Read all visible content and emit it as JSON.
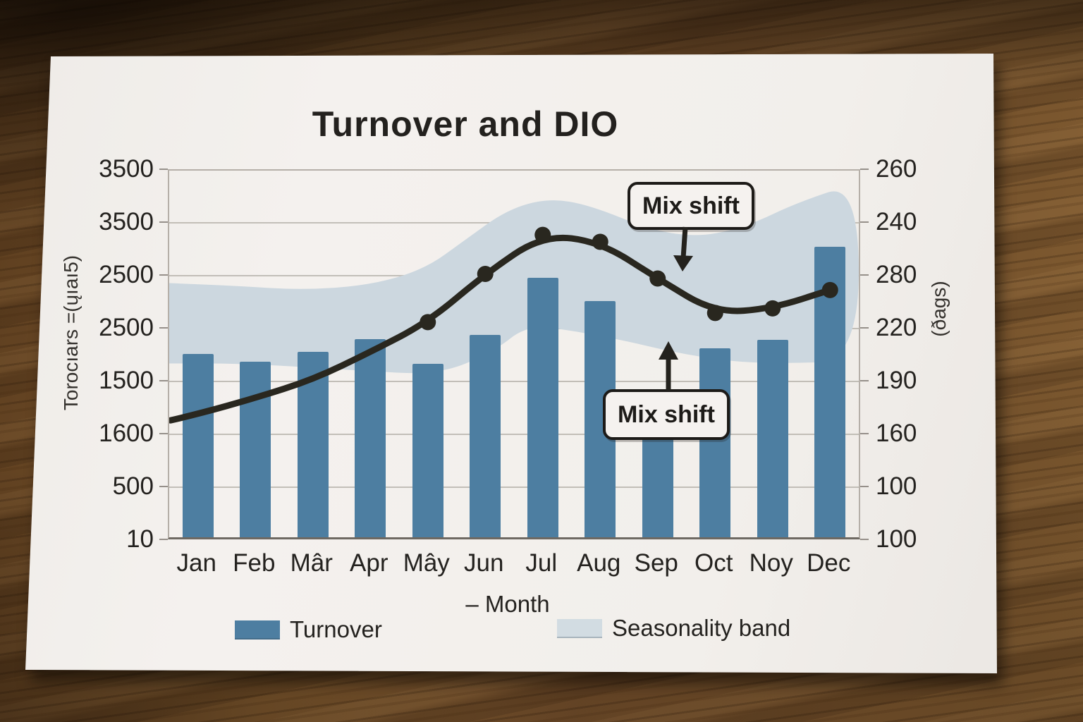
{
  "chart_data": {
    "type": "bar+line",
    "title": "Turnover and DIO",
    "xlabel": "– Month",
    "categories": [
      "Jan",
      "Feb",
      "Mar",
      "Apr",
      "May",
      "Jun",
      "Jul",
      "Aug",
      "Sep",
      "Oct",
      "Nov",
      "Dec"
    ],
    "x_tick_labels_as_printed": [
      "Jan",
      "Feb",
      "Mâr",
      "Apr",
      "Mây",
      "Jun",
      "Jul",
      "Aug",
      "Sep",
      "Oct",
      "Noy",
      "Dec"
    ],
    "left_axis": {
      "label": "Torocıars =(ųıaı5)",
      "tick_labels": [
        "3500",
        "3500",
        "2500",
        "2500",
        "1500",
        "1600",
        "500",
        "10"
      ],
      "ylim": [
        0,
        3500
      ]
    },
    "right_axis": {
      "label": "(ðags)",
      "tick_labels": [
        "260",
        "240",
        "280",
        "220",
        "190",
        "160",
        "100",
        "100"
      ],
      "ylim": [
        100,
        260
      ]
    },
    "grid": true,
    "legend_position": "bottom",
    "series": [
      {
        "name": "Turnover",
        "type": "bar",
        "axis": "left",
        "color": "#4d7ea1",
        "values": [
          1750,
          1670,
          1770,
          1890,
          1650,
          1930,
          2470,
          2250,
          1370,
          1800,
          1880,
          2770
        ]
      },
      {
        "name": "DIO",
        "type": "line",
        "axis": "right",
        "color": "#29271f",
        "marker_start_index": 4,
        "values": [
          154,
          161,
          169,
          181,
          194,
          215,
          232,
          229,
          213,
          198,
          200,
          208
        ]
      },
      {
        "name": "Seasonality band",
        "type": "band",
        "axis": "right",
        "color": "#ccd7df",
        "top": [
          [
            0,
            211
          ],
          [
            0.09,
            210
          ],
          [
            0.19,
            208
          ],
          [
            0.29,
            210
          ],
          [
            0.37,
            217
          ],
          [
            0.43,
            230
          ],
          [
            0.49,
            243
          ],
          [
            0.55,
            248
          ],
          [
            0.61,
            245
          ],
          [
            0.7,
            234
          ],
          [
            0.77,
            231
          ],
          [
            0.84,
            236
          ],
          [
            0.91,
            246
          ],
          [
            1,
            255
          ]
        ],
        "bottom": [
          [
            0,
            176
          ],
          [
            0.11,
            176
          ],
          [
            0.27,
            173
          ],
          [
            0.39,
            171
          ],
          [
            0.47,
            181
          ],
          [
            0.52,
            193
          ],
          [
            0.59,
            190
          ],
          [
            0.66,
            186
          ],
          [
            0.73,
            181
          ],
          [
            0.81,
            177
          ],
          [
            0.88,
            176
          ],
          [
            1,
            177
          ]
        ]
      }
    ],
    "legend": {
      "items": [
        {
          "label": "Turnover",
          "color": "#4d7ea1"
        },
        {
          "label": "Seasonality band",
          "color": "#d2dce2"
        }
      ]
    },
    "annotations": [
      {
        "text": "Mix shift",
        "arrow_direction": "down"
      },
      {
        "text": "Mix shift",
        "arrow_direction": "up"
      }
    ]
  },
  "colors": {
    "paper": "#f2efeb",
    "wood": "#6a4726",
    "text": "#1e1c1a",
    "gridline": "#b2ada6"
  }
}
